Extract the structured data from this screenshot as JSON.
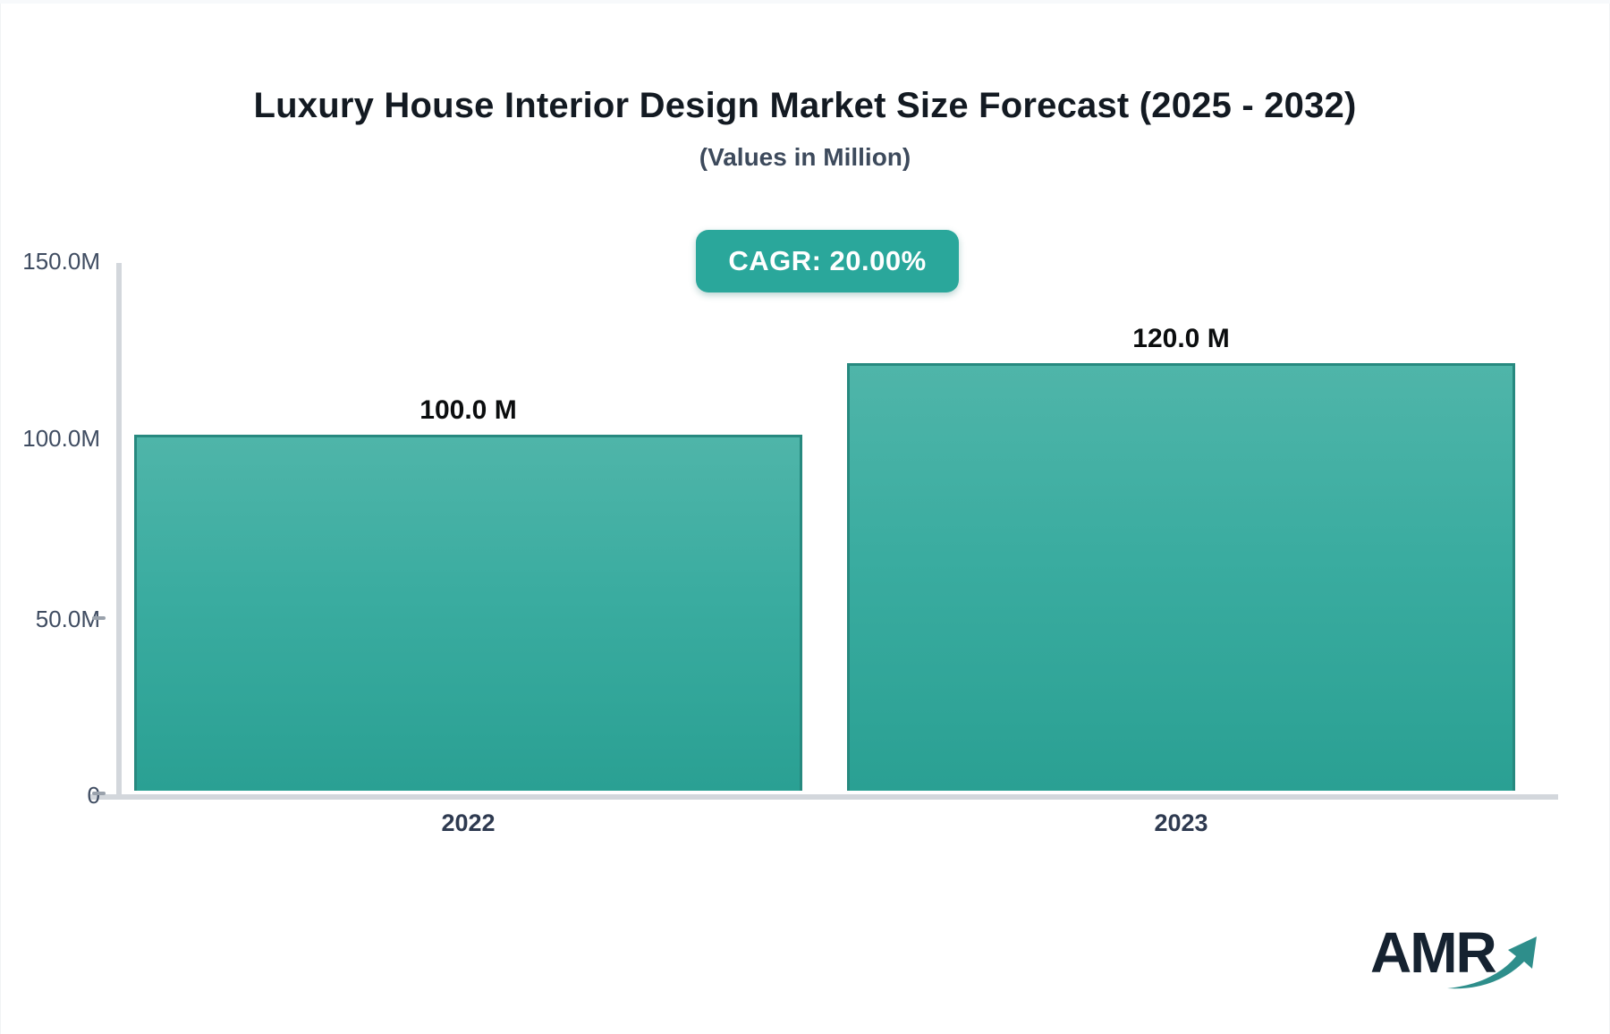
{
  "badge": {
    "label": "CAGR: 20.00%",
    "bg_color": "#2aa79b"
  },
  "chart_data": {
    "type": "bar",
    "title": "Luxury House Interior Design Market Size Forecast (2025 - 2032)",
    "subtitle": "(Values in Million)",
    "categories": [
      "2022",
      "2023"
    ],
    "values": [
      100.0,
      120.0
    ],
    "value_labels": [
      "100.0 M",
      "120.0 M"
    ],
    "unit": "Million",
    "xlabel": "",
    "ylabel": "",
    "ylim": [
      0,
      150
    ],
    "ytick_labels": [
      "150.0M",
      "100.0M",
      "50.0M",
      "0"
    ],
    "grid": false,
    "legend_position": "none",
    "colors": {
      "bar_top": "#4fb5a9",
      "bar_bottom": "#2aa093",
      "bar_border": "#27897f",
      "axis": "#d3d7dc",
      "tick": "#9aa2ac",
      "text_dark": "#131a22",
      "text_slate": "#3d4a5c"
    }
  },
  "logo": {
    "text": "AMR",
    "arrow_color": "#2e8e8b"
  }
}
